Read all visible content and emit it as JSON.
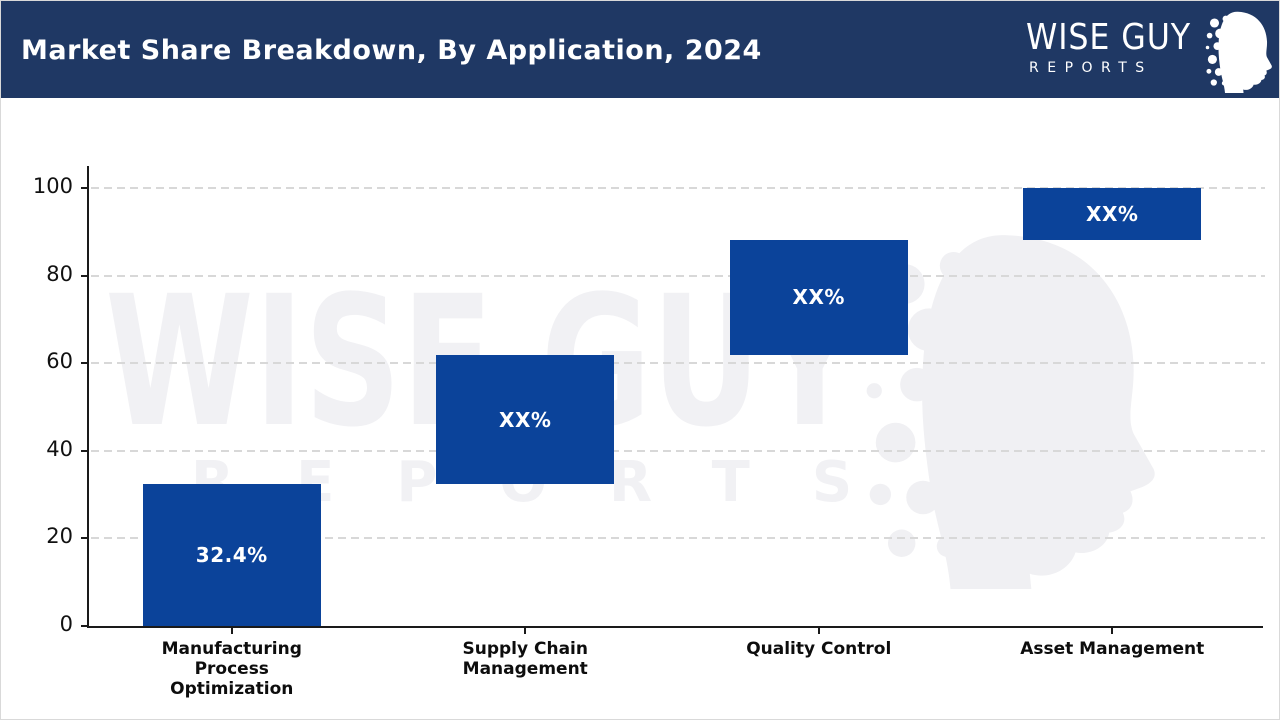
{
  "header": {
    "title": "Market Share Breakdown, By Application, 2024",
    "logo": {
      "line1": "WISE GUY",
      "line2": "REPORTS"
    }
  },
  "watermark": {
    "line1": "WISE GUY",
    "line2": "REPORTS"
  },
  "chart_data": {
    "type": "bar",
    "subtype": "waterfall",
    "title": "Market Share Breakdown, By Application, 2024",
    "categories": [
      "Manufacturing Process Optimization",
      "Supply Chain Management",
      "Quality Control",
      "Asset Management"
    ],
    "category_label_lines": [
      [
        "Manufacturing",
        "Process",
        "Optimization"
      ],
      [
        "Supply Chain",
        "Management"
      ],
      [
        "Quality Control"
      ],
      [
        "Asset Management"
      ]
    ],
    "segments": [
      {
        "category": "Manufacturing Process Optimization",
        "start": 0,
        "end": 32.4,
        "label": "32.4%"
      },
      {
        "category": "Supply Chain Management",
        "start": 32.4,
        "end": 61.8,
        "label": "XX%"
      },
      {
        "category": "Quality Control",
        "start": 61.8,
        "end": 88.2,
        "label": "XX%"
      },
      {
        "category": "Asset Management",
        "start": 88.2,
        "end": 100,
        "label": "XX%"
      }
    ],
    "xlabel": "",
    "ylabel": "",
    "yticks": [
      0,
      20,
      40,
      60,
      80,
      100
    ],
    "ylim": [
      0,
      105
    ],
    "grid": {
      "axis": "y",
      "style": "dashed",
      "color": "#d8d8d8"
    },
    "legend": "none",
    "colors": {
      "bar": "#0b439a",
      "bar_label": "#ffffff",
      "axis": "#1a1a1a",
      "tick_label": "#111111"
    }
  },
  "colors": {
    "header_bg": "#1f3864",
    "canvas_bg": "#ffffff",
    "watermark": "#f1f1f4",
    "border": "#d9d9d9"
  }
}
